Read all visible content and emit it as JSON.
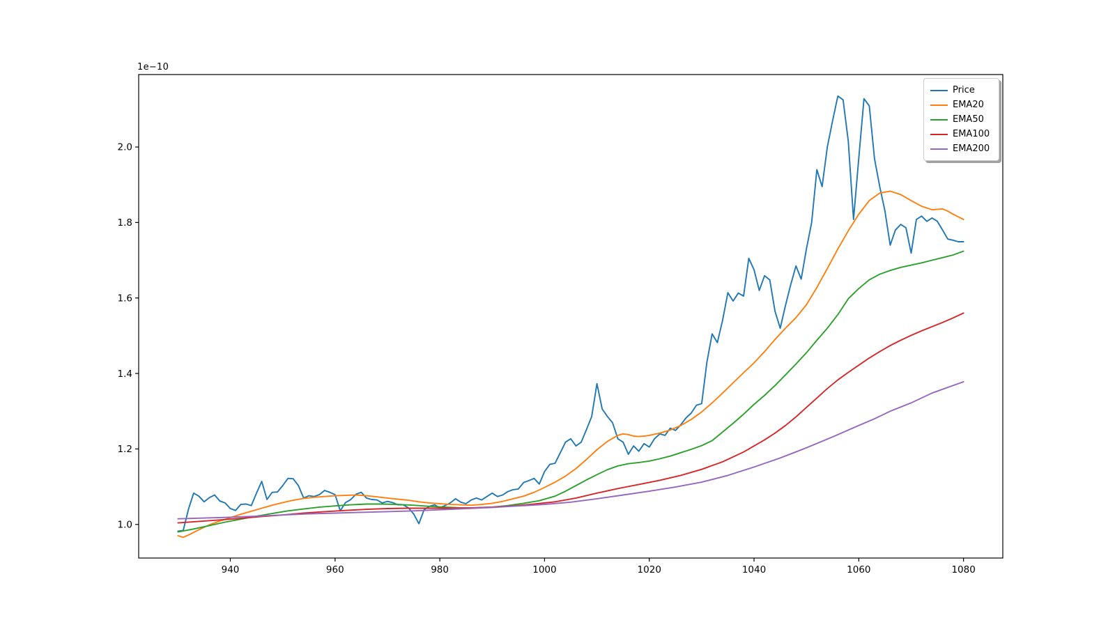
{
  "figure": {
    "background": "#ffffff",
    "offset_label": "1e−10"
  },
  "chart_data": {
    "type": "line",
    "title": "",
    "xlabel": "",
    "ylabel": "",
    "y_offset_multiplier": "1e−10",
    "grid": false,
    "legend_position": "upper right",
    "xlim": [
      922.5,
      1087.5
    ],
    "ylim": [
      0.911,
      2.192
    ],
    "xticks": [
      940,
      960,
      980,
      1000,
      1020,
      1040,
      1060,
      1080
    ],
    "xtick_labels": [
      "940",
      "960",
      "980",
      "1000",
      "1020",
      "1040",
      "1060",
      "1080"
    ],
    "yticks": [
      1.0,
      1.2,
      1.4,
      1.6,
      1.8,
      2.0
    ],
    "ytick_labels": [
      "1.0",
      "1.2",
      "1.4",
      "1.6",
      "1.8",
      "2.0"
    ],
    "axis_color": "#000000",
    "series": [
      {
        "name": "Price",
        "color": "#1f77b4",
        "x_start": 930,
        "x_step": 1,
        "values": [
          0.982,
          0.984,
          1.04,
          1.083,
          1.075,
          1.06,
          1.071,
          1.078,
          1.062,
          1.057,
          1.042,
          1.037,
          1.053,
          1.054,
          1.05,
          1.083,
          1.114,
          1.066,
          1.085,
          1.086,
          1.103,
          1.122,
          1.121,
          1.103,
          1.07,
          1.076,
          1.074,
          1.079,
          1.09,
          1.085,
          1.079,
          1.036,
          1.058,
          1.066,
          1.08,
          1.085,
          1.07,
          1.066,
          1.065,
          1.057,
          1.061,
          1.058,
          1.052,
          1.052,
          1.044,
          1.028,
          1.002,
          1.039,
          1.048,
          1.052,
          1.044,
          1.05,
          1.057,
          1.068,
          1.059,
          1.055,
          1.065,
          1.07,
          1.065,
          1.074,
          1.083,
          1.074,
          1.078,
          1.087,
          1.092,
          1.094,
          1.111,
          1.116,
          1.122,
          1.107,
          1.14,
          1.159,
          1.162,
          1.19,
          1.218,
          1.227,
          1.208,
          1.218,
          1.251,
          1.286,
          1.373,
          1.306,
          1.286,
          1.269,
          1.227,
          1.218,
          1.186,
          1.208,
          1.194,
          1.214,
          1.205,
          1.227,
          1.24,
          1.236,
          1.255,
          1.249,
          1.264,
          1.282,
          1.295,
          1.316,
          1.32,
          1.43,
          1.505,
          1.482,
          1.541,
          1.614,
          1.592,
          1.613,
          1.605,
          1.705,
          1.675,
          1.62,
          1.659,
          1.648,
          1.565,
          1.52,
          1.58,
          1.635,
          1.685,
          1.65,
          1.73,
          1.8,
          1.94,
          1.895,
          2.0,
          2.07,
          2.135,
          2.125,
          2.015,
          1.808,
          1.97,
          2.128,
          2.109,
          1.969,
          1.895,
          1.83,
          1.74,
          1.78,
          1.795,
          1.786,
          1.719,
          1.808,
          1.817,
          1.803,
          1.812,
          1.803,
          1.78,
          1.756,
          1.753,
          1.749,
          1.749
        ]
      },
      {
        "name": "EMA20",
        "color": "#ff7f0e",
        "points": [
          [
            930,
            0.97
          ],
          [
            931,
            0.966
          ],
          [
            932,
            0.972
          ],
          [
            934,
            0.986
          ],
          [
            936,
            0.999
          ],
          [
            938,
            1.009
          ],
          [
            940,
            1.018
          ],
          [
            942,
            1.027
          ],
          [
            944,
            1.035
          ],
          [
            946,
            1.043
          ],
          [
            948,
            1.051
          ],
          [
            950,
            1.058
          ],
          [
            952,
            1.064
          ],
          [
            954,
            1.069
          ],
          [
            956,
            1.072
          ],
          [
            958,
            1.074
          ],
          [
            960,
            1.076
          ],
          [
            962,
            1.077
          ],
          [
            964,
            1.078
          ],
          [
            966,
            1.076
          ],
          [
            968,
            1.073
          ],
          [
            970,
            1.07
          ],
          [
            972,
            1.067
          ],
          [
            974,
            1.064
          ],
          [
            976,
            1.06
          ],
          [
            978,
            1.057
          ],
          [
            980,
            1.055
          ],
          [
            982,
            1.053
          ],
          [
            984,
            1.052
          ],
          [
            986,
            1.051
          ],
          [
            988,
            1.053
          ],
          [
            990,
            1.056
          ],
          [
            992,
            1.061
          ],
          [
            994,
            1.068
          ],
          [
            996,
            1.075
          ],
          [
            998,
            1.085
          ],
          [
            1000,
            1.098
          ],
          [
            1002,
            1.112
          ],
          [
            1004,
            1.128
          ],
          [
            1006,
            1.148
          ],
          [
            1008,
            1.172
          ],
          [
            1010,
            1.198
          ],
          [
            1012,
            1.22
          ],
          [
            1014,
            1.236
          ],
          [
            1015,
            1.24
          ],
          [
            1016,
            1.238
          ],
          [
            1017,
            1.234
          ],
          [
            1018,
            1.233
          ],
          [
            1019,
            1.234
          ],
          [
            1020,
            1.236
          ],
          [
            1022,
            1.242
          ],
          [
            1024,
            1.25
          ],
          [
            1026,
            1.262
          ],
          [
            1028,
            1.278
          ],
          [
            1030,
            1.298
          ],
          [
            1032,
            1.322
          ],
          [
            1034,
            1.348
          ],
          [
            1036,
            1.375
          ],
          [
            1038,
            1.402
          ],
          [
            1040,
            1.428
          ],
          [
            1042,
            1.458
          ],
          [
            1044,
            1.49
          ],
          [
            1046,
            1.52
          ],
          [
            1048,
            1.548
          ],
          [
            1050,
            1.582
          ],
          [
            1052,
            1.628
          ],
          [
            1054,
            1.678
          ],
          [
            1056,
            1.73
          ],
          [
            1058,
            1.778
          ],
          [
            1060,
            1.822
          ],
          [
            1062,
            1.858
          ],
          [
            1064,
            1.878
          ],
          [
            1066,
            1.883
          ],
          [
            1068,
            1.874
          ],
          [
            1070,
            1.858
          ],
          [
            1072,
            1.843
          ],
          [
            1074,
            1.834
          ],
          [
            1076,
            1.836
          ],
          [
            1077,
            1.83
          ],
          [
            1078,
            1.822
          ],
          [
            1079,
            1.815
          ],
          [
            1080,
            1.808
          ]
        ]
      },
      {
        "name": "EMA50",
        "color": "#2ca02c",
        "points": [
          [
            930,
            0.98
          ],
          [
            933,
            0.988
          ],
          [
            936,
            0.997
          ],
          [
            939,
            1.006
          ],
          [
            942,
            1.014
          ],
          [
            945,
            1.022
          ],
          [
            948,
            1.029
          ],
          [
            951,
            1.036
          ],
          [
            954,
            1.041
          ],
          [
            957,
            1.046
          ],
          [
            960,
            1.049
          ],
          [
            963,
            1.052
          ],
          [
            966,
            1.054
          ],
          [
            969,
            1.054
          ],
          [
            972,
            1.053
          ],
          [
            975,
            1.051
          ],
          [
            978,
            1.048
          ],
          [
            981,
            1.046
          ],
          [
            984,
            1.044
          ],
          [
            987,
            1.044
          ],
          [
            990,
            1.046
          ],
          [
            993,
            1.05
          ],
          [
            996,
            1.056
          ],
          [
            999,
            1.063
          ],
          [
            1002,
            1.075
          ],
          [
            1004,
            1.088
          ],
          [
            1006,
            1.103
          ],
          [
            1008,
            1.118
          ],
          [
            1010,
            1.132
          ],
          [
            1012,
            1.145
          ],
          [
            1014,
            1.155
          ],
          [
            1016,
            1.161
          ],
          [
            1018,
            1.164
          ],
          [
            1020,
            1.168
          ],
          [
            1022,
            1.174
          ],
          [
            1024,
            1.181
          ],
          [
            1026,
            1.19
          ],
          [
            1028,
            1.199
          ],
          [
            1030,
            1.209
          ],
          [
            1032,
            1.222
          ],
          [
            1034,
            1.245
          ],
          [
            1036,
            1.268
          ],
          [
            1038,
            1.292
          ],
          [
            1040,
            1.318
          ],
          [
            1042,
            1.342
          ],
          [
            1044,
            1.368
          ],
          [
            1046,
            1.396
          ],
          [
            1048,
            1.425
          ],
          [
            1050,
            1.455
          ],
          [
            1052,
            1.488
          ],
          [
            1054,
            1.52
          ],
          [
            1056,
            1.556
          ],
          [
            1058,
            1.598
          ],
          [
            1060,
            1.625
          ],
          [
            1062,
            1.648
          ],
          [
            1064,
            1.663
          ],
          [
            1066,
            1.673
          ],
          [
            1068,
            1.681
          ],
          [
            1070,
            1.687
          ],
          [
            1072,
            1.693
          ],
          [
            1074,
            1.7
          ],
          [
            1076,
            1.707
          ],
          [
            1078,
            1.714
          ],
          [
            1080,
            1.724
          ]
        ]
      },
      {
        "name": "EMA100",
        "color": "#d62728",
        "points": [
          [
            930,
            1.004
          ],
          [
            934,
            1.008
          ],
          [
            938,
            1.012
          ],
          [
            942,
            1.016
          ],
          [
            946,
            1.021
          ],
          [
            950,
            1.025
          ],
          [
            954,
            1.03
          ],
          [
            958,
            1.034
          ],
          [
            962,
            1.037
          ],
          [
            966,
            1.04
          ],
          [
            970,
            1.042
          ],
          [
            974,
            1.043
          ],
          [
            978,
            1.043
          ],
          [
            982,
            1.043
          ],
          [
            986,
            1.044
          ],
          [
            990,
            1.046
          ],
          [
            994,
            1.049
          ],
          [
            998,
            1.054
          ],
          [
            1002,
            1.06
          ],
          [
            1006,
            1.07
          ],
          [
            1010,
            1.083
          ],
          [
            1014,
            1.095
          ],
          [
            1018,
            1.106
          ],
          [
            1022,
            1.117
          ],
          [
            1026,
            1.13
          ],
          [
            1030,
            1.146
          ],
          [
            1034,
            1.166
          ],
          [
            1038,
            1.192
          ],
          [
            1042,
            1.224
          ],
          [
            1044,
            1.242
          ],
          [
            1046,
            1.262
          ],
          [
            1048,
            1.285
          ],
          [
            1050,
            1.31
          ],
          [
            1052,
            1.335
          ],
          [
            1054,
            1.36
          ],
          [
            1056,
            1.383
          ],
          [
            1058,
            1.403
          ],
          [
            1060,
            1.422
          ],
          [
            1062,
            1.441
          ],
          [
            1064,
            1.458
          ],
          [
            1066,
            1.474
          ],
          [
            1068,
            1.488
          ],
          [
            1070,
            1.501
          ],
          [
            1072,
            1.513
          ],
          [
            1074,
            1.524
          ],
          [
            1076,
            1.535
          ],
          [
            1078,
            1.547
          ],
          [
            1080,
            1.56
          ]
        ]
      },
      {
        "name": "EMA200",
        "color": "#9467bd",
        "points": [
          [
            930,
            1.015
          ],
          [
            935,
            1.017
          ],
          [
            940,
            1.019
          ],
          [
            945,
            1.022
          ],
          [
            950,
            1.025
          ],
          [
            955,
            1.028
          ],
          [
            960,
            1.03
          ],
          [
            965,
            1.032
          ],
          [
            970,
            1.034
          ],
          [
            975,
            1.036
          ],
          [
            980,
            1.039
          ],
          [
            985,
            1.042
          ],
          [
            990,
            1.045
          ],
          [
            995,
            1.049
          ],
          [
            1000,
            1.053
          ],
          [
            1005,
            1.059
          ],
          [
            1010,
            1.068
          ],
          [
            1015,
            1.078
          ],
          [
            1020,
            1.088
          ],
          [
            1025,
            1.099
          ],
          [
            1030,
            1.112
          ],
          [
            1035,
            1.13
          ],
          [
            1040,
            1.152
          ],
          [
            1045,
            1.176
          ],
          [
            1050,
            1.203
          ],
          [
            1055,
            1.232
          ],
          [
            1060,
            1.262
          ],
          [
            1063,
            1.28
          ],
          [
            1066,
            1.3
          ],
          [
            1070,
            1.322
          ],
          [
            1074,
            1.348
          ],
          [
            1078,
            1.368
          ],
          [
            1080,
            1.378
          ]
        ]
      }
    ]
  }
}
